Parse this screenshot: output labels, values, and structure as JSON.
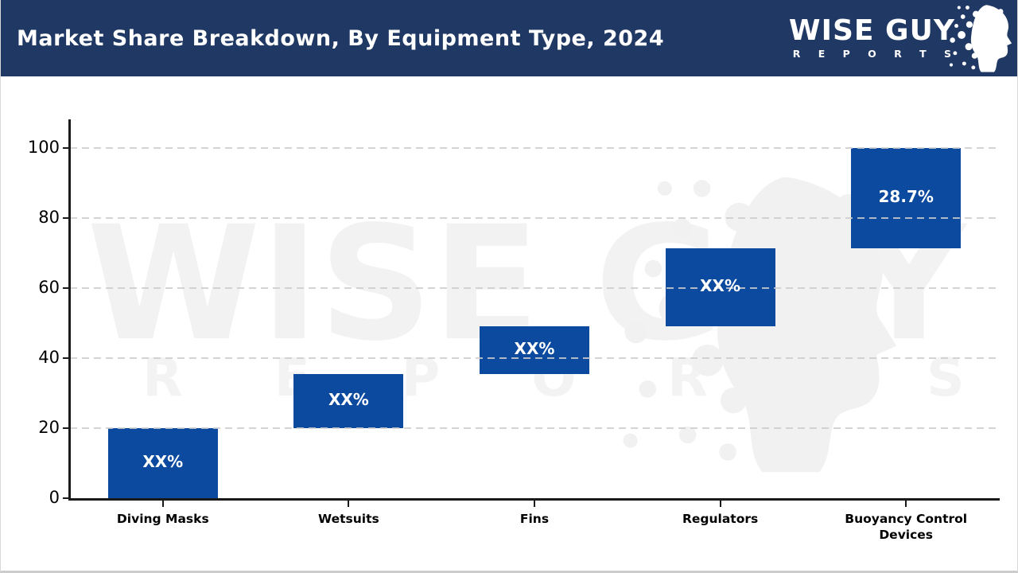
{
  "header": {
    "title": "Market Share Breakdown, By Equipment Type, 2024",
    "bg_color": "#203864",
    "logo": {
      "brand": "WISE GUY",
      "sub": "R E P O R T S"
    }
  },
  "watermark": {
    "line1": "WISE GUY",
    "line2": "R E P O R T S"
  },
  "chart_data": {
    "type": "bar",
    "variant": "waterfall",
    "title": "Market Share Breakdown, By Equipment Type, 2024",
    "categories": [
      "Diving Masks",
      "Wetsuits",
      "Fins",
      "Regulators",
      "Buoyancy Control Devices"
    ],
    "segments": [
      {
        "category": "Diving Masks",
        "start": 0,
        "end": 20,
        "label": "XX%"
      },
      {
        "category": "Wetsuits",
        "start": 20,
        "end": 35.5,
        "label": "XX%"
      },
      {
        "category": "Fins",
        "start": 35.5,
        "end": 49,
        "label": "XX%"
      },
      {
        "category": "Regulators",
        "start": 49,
        "end": 71.3,
        "label": "XX%"
      },
      {
        "category": "Buoyancy Control Devices",
        "start": 71.3,
        "end": 100,
        "label": "28.7%"
      }
    ],
    "xlabel": "",
    "ylabel": "",
    "ylim": [
      0,
      100
    ],
    "yticks": [
      0,
      20,
      40,
      60,
      80,
      100
    ],
    "grid": "dashed horizontal, drawn over bars",
    "legend": "none",
    "bar_color": "#0b4a9e",
    "bar_label_color": "#ffffff",
    "axis_color": "#1a1a1a"
  }
}
